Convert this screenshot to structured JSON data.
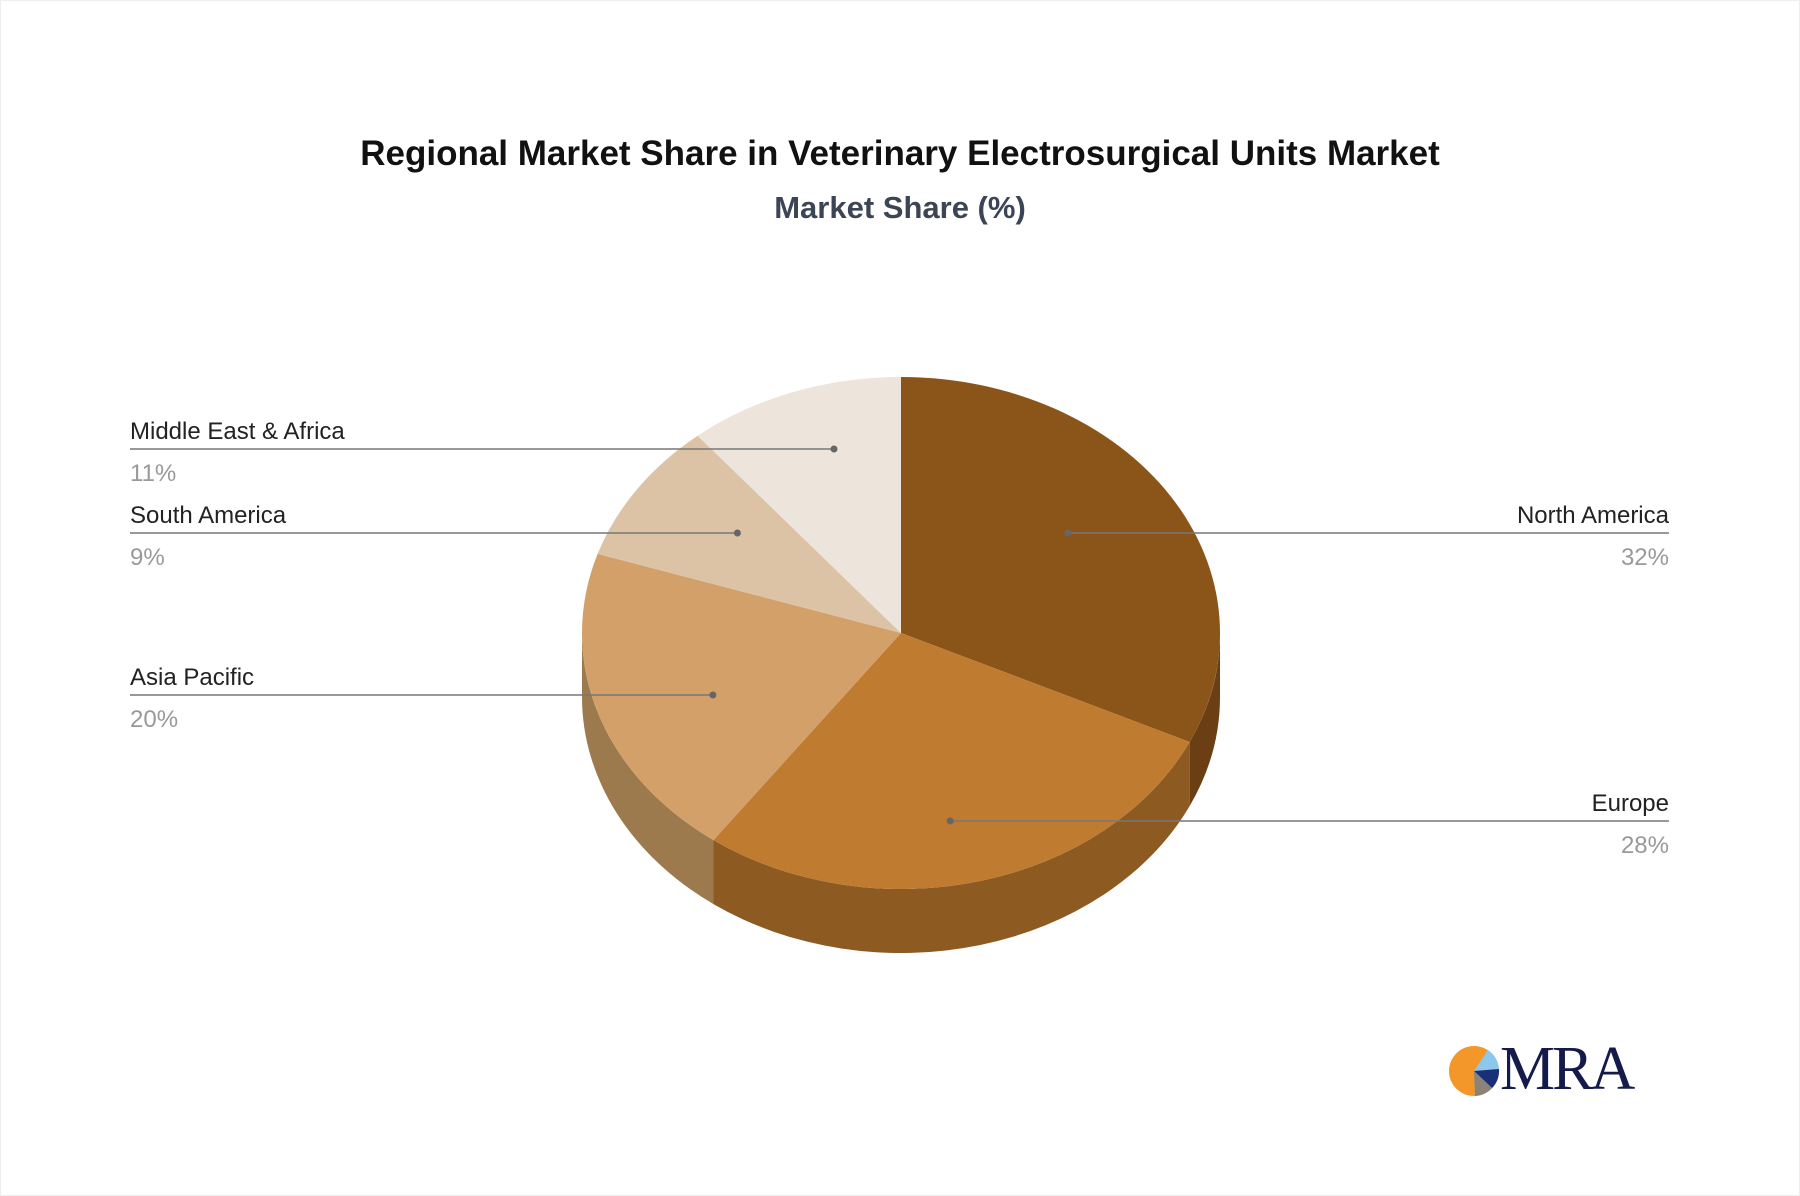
{
  "chart_data": {
    "type": "pie",
    "title": "Regional Market Share in Veterinary Electrosurgical Units Market",
    "subtitle": "Market Share (%)",
    "style": "3d",
    "slices": [
      {
        "label": "North America",
        "value": 32,
        "display": "32%",
        "color": "#8b5519",
        "side": "#6b3f13",
        "label_side": "right"
      },
      {
        "label": "Europe",
        "value": 28,
        "display": "28%",
        "color": "#bf7b30",
        "side": "#8d5a22",
        "label_side": "right"
      },
      {
        "label": "Asia Pacific",
        "value": 20,
        "display": "20%",
        "color": "#d2a068",
        "side": "#9c7a4d",
        "label_side": "left"
      },
      {
        "label": "South America",
        "value": 9,
        "display": "9%",
        "color": "#ddc3a6",
        "side": "#a89276",
        "label_side": "left"
      },
      {
        "label": "Middle East & Africa",
        "value": 11,
        "display": "11%",
        "color": "#ede4db",
        "side": "#b8ada2",
        "label_side": "left"
      }
    ]
  },
  "logo": {
    "text": "MRA",
    "colors": {
      "orange": "#f3972a",
      "light_blue": "#8cc8ee",
      "navy": "#1a2f7a",
      "gray": "#8a8378",
      "text": "#141a4a"
    }
  }
}
